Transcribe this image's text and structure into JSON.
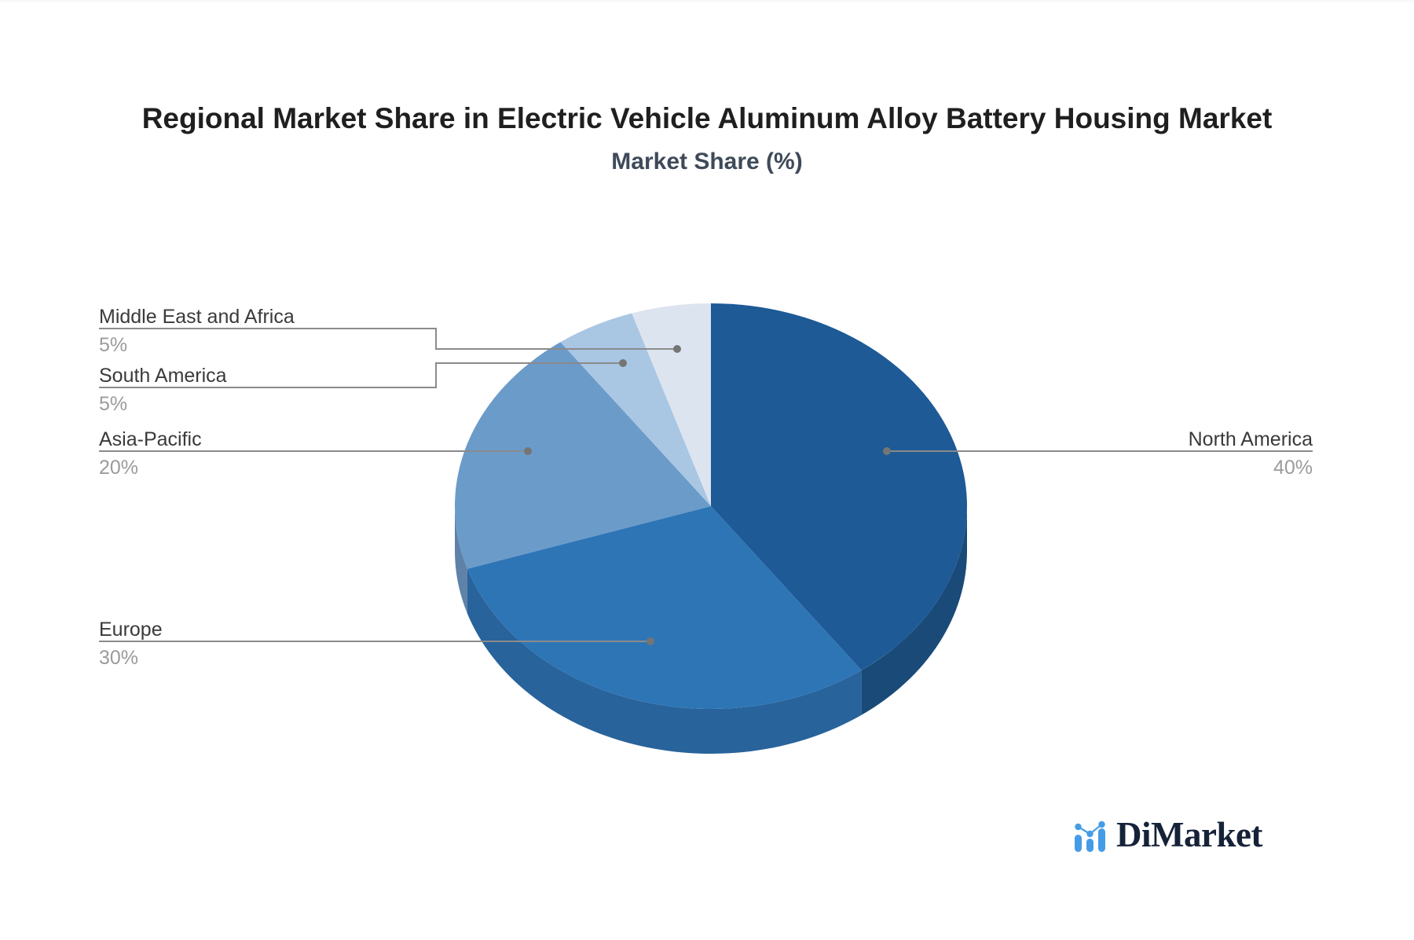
{
  "title": "Regional Market Share in Electric Vehicle Aluminum Alloy Battery Housing Market",
  "subtitle": "Market Share (%)",
  "chart_data": {
    "type": "pie",
    "title": "Regional Market Share in Electric Vehicle Aluminum Alloy Battery Housing Market",
    "subtitle": "Market Share (%)",
    "unit": "%",
    "start_angle_deg_clockwise_from_top": 0,
    "style": "3d-pie",
    "items": [
      {
        "label": "North America",
        "value": 40,
        "pct": "40%",
        "color": "#1d5a96",
        "side_color": "#1a4a78"
      },
      {
        "label": "Europe",
        "value": 30,
        "pct": "30%",
        "color": "#2e75b6",
        "side_color": "#28639b"
      },
      {
        "label": "Asia-Pacific",
        "value": 20,
        "pct": "20%",
        "color": "#6b9bc9",
        "side_color": "#5e82a8"
      },
      {
        "label": "South America",
        "value": 5,
        "pct": "5%",
        "color": "#a9c6e3",
        "side_color": "#8fadd0"
      },
      {
        "label": "Middle East and Africa",
        "value": 5,
        "pct": "5%",
        "color": "#dce4f0",
        "side_color": "#bcc8da"
      }
    ],
    "colors": {
      "leader_line": "#8b8b8b",
      "leader_dot": "#757575",
      "label_text": "#3a3a3a",
      "pct_text": "#9b9b9b"
    }
  },
  "logo": {
    "text": "DiMarket",
    "accent": "#459ce6",
    "text_color": "#152238"
  }
}
